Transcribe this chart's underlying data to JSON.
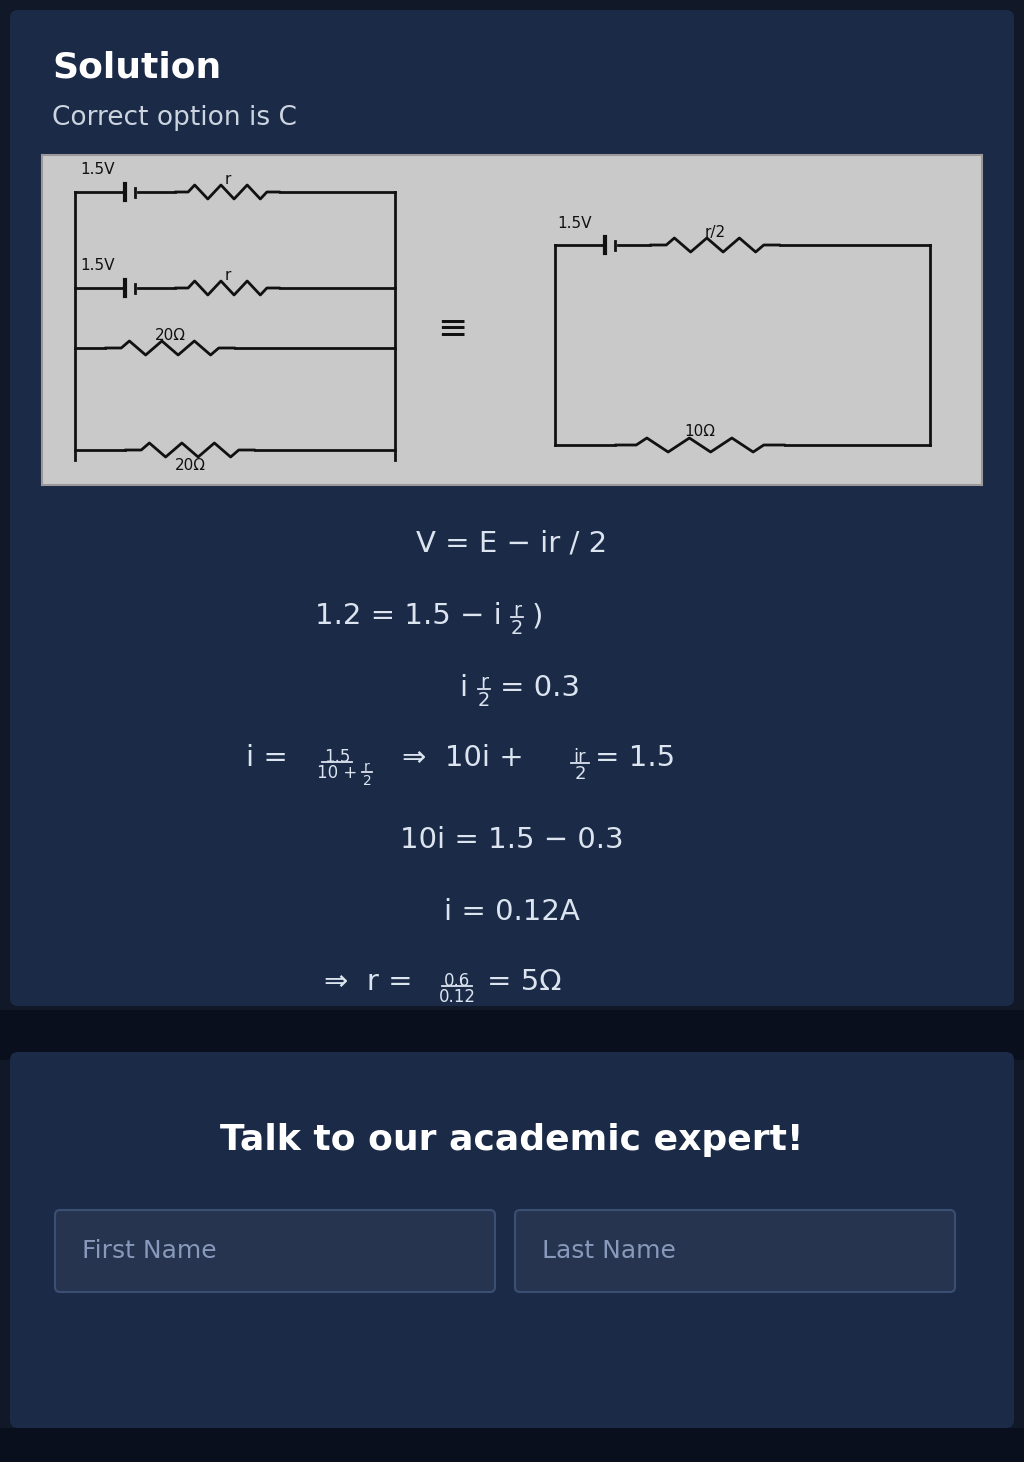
{
  "bg_color_outer": "#111827",
  "bg_color_card": "#1b2a47",
  "bg_color_circuit": "#c9c9c9",
  "title": "Solution",
  "subtitle": "Correct option is C",
  "title_color": "#ffffff",
  "subtitle_color": "#ccd4e0",
  "eq_color": "#dce4f0",
  "talk_title": "Talk to our academic expert!",
  "talk_color": "#ffffff",
  "input_placeholder1": "First Name",
  "input_placeholder2": "Last Name",
  "input_text_color": "#8899bb",
  "input_bg": "#263450",
  "input_border": "#3a4f72",
  "bottom_card_bg": "#1b2a47",
  "black_gap": "#0a0f1e"
}
